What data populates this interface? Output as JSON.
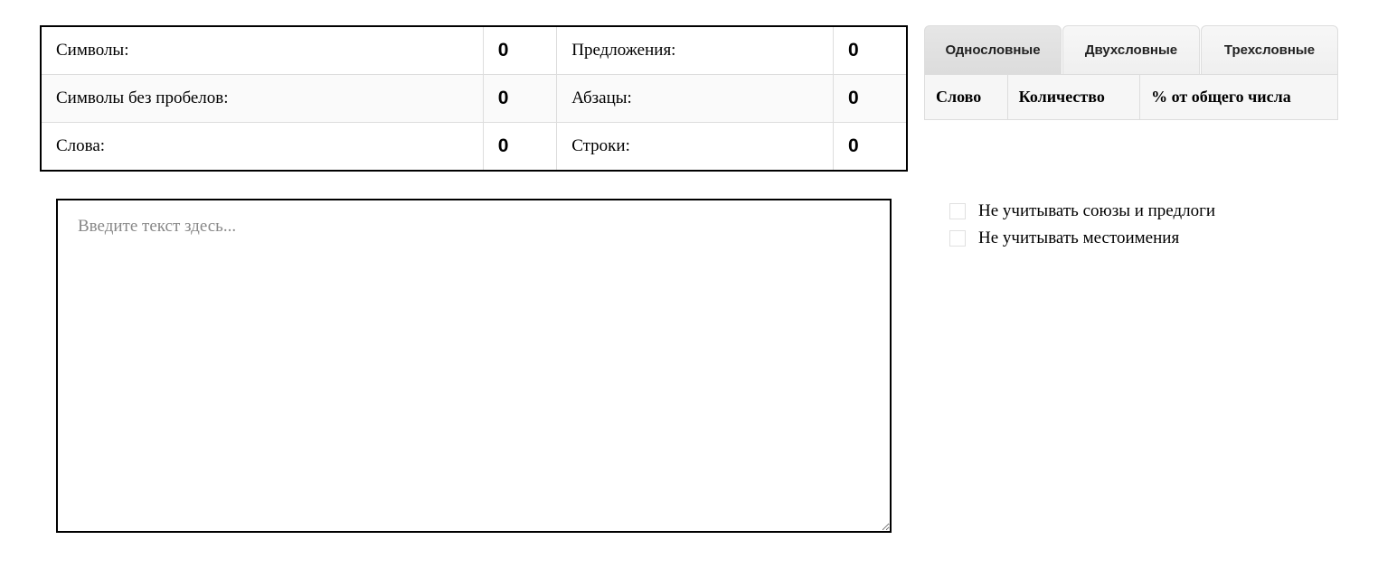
{
  "stats": {
    "rows": [
      {
        "label": "Символы:",
        "value": "0",
        "label2": "Предложения:",
        "value2": "0"
      },
      {
        "label": "Символы без пробелов:",
        "value": "0",
        "label2": "Абзацы:",
        "value2": "0"
      },
      {
        "label": "Слова:",
        "value": "0",
        "label2": "Строки:",
        "value2": "0"
      }
    ]
  },
  "textarea": {
    "placeholder": "Введите текст здесь..."
  },
  "tabs": [
    {
      "label": "Однословные",
      "active": true
    },
    {
      "label": "Двухсловные",
      "active": false
    },
    {
      "label": "Трехсловные",
      "active": false
    }
  ],
  "word_table": {
    "columns": [
      "Слово",
      "Количество",
      "% от общего числа"
    ]
  },
  "checks": [
    {
      "label": "Не учитывать союзы и предлоги",
      "checked": false
    },
    {
      "label": "Не учитывать местоимения",
      "checked": false
    }
  ]
}
